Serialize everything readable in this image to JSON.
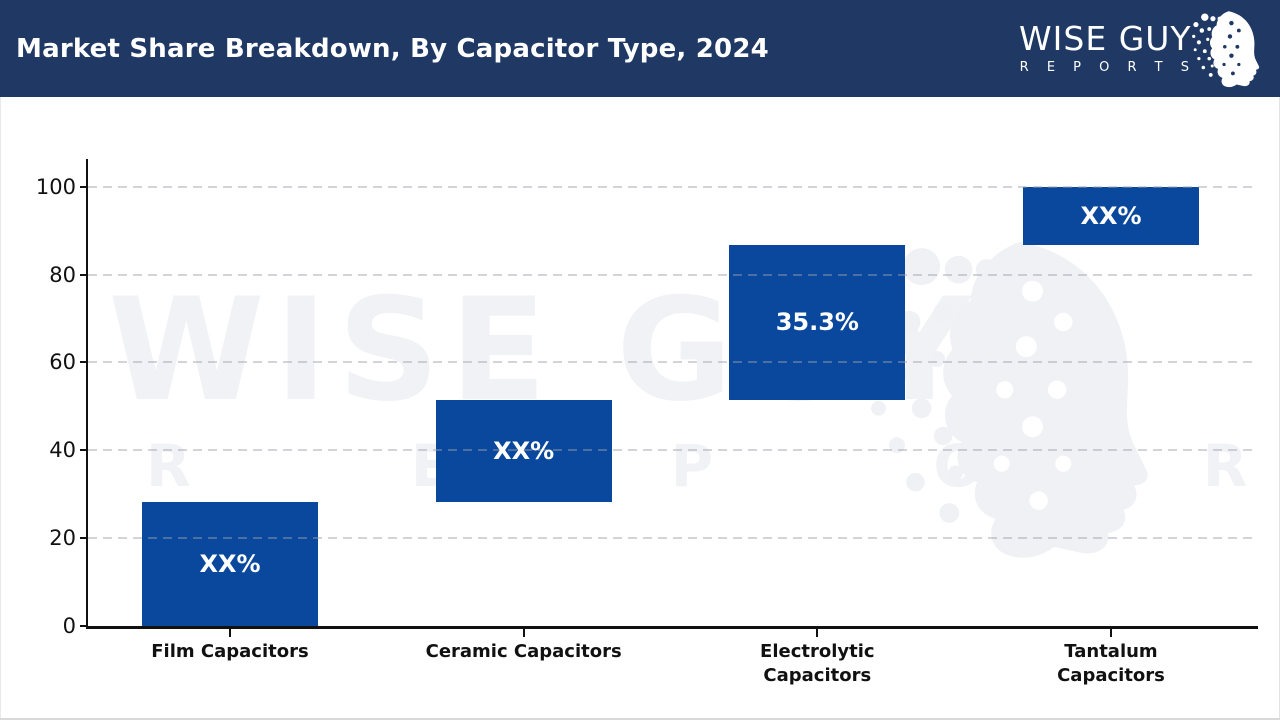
{
  "header": {
    "title": "Market Share Breakdown, By Capacitor Type, 2024",
    "logo": {
      "name_top": "WISE GUY",
      "name_bottom": "R E P O R T S"
    }
  },
  "watermark": {
    "text_top": "WISE GUY",
    "text_bottom": "R E P O R T S"
  },
  "colors": {
    "header_bg": "#1f3864",
    "bar": "#0a489d",
    "bar_label": "#ffffff",
    "grid": "#d9d9d9",
    "axis": "#111111",
    "watermark": "#f1f2f6"
  },
  "chart_data": {
    "type": "bar",
    "variant": "stacked-waterfall",
    "title": "Market Share Breakdown, By Capacitor Type, 2024",
    "categories": [
      "Film Capacitors",
      "Ceramic Capacitors",
      "Electrolytic Capacitors",
      "Tantalum Capacitors"
    ],
    "categories_lines": [
      [
        "Film Capacitors"
      ],
      [
        "Ceramic Capacitors"
      ],
      [
        "Electrolytic",
        "Capacitors"
      ],
      [
        "Tantalum",
        "Capacitors"
      ]
    ],
    "series": [
      {
        "name": "Market share (%)",
        "values": [
          28.2,
          23.3,
          35.3,
          13.2
        ]
      }
    ],
    "segments": [
      {
        "category": "Film Capacitors",
        "start": 0,
        "end": 28.2,
        "label": "XX%"
      },
      {
        "category": "Ceramic Capacitors",
        "start": 28.2,
        "end": 51.5,
        "label": "XX%"
      },
      {
        "category": "Electrolytic Capacitors",
        "start": 51.5,
        "end": 86.8,
        "label": "35.3%"
      },
      {
        "category": "Tantalum Capacitors",
        "start": 86.8,
        "end": 100,
        "label": "XX%"
      }
    ],
    "ylim": [
      0,
      100
    ],
    "yticks": [
      0,
      20,
      40,
      60,
      80,
      100
    ],
    "grid": "horizontal-dashed",
    "legend": "none",
    "xlabel": "",
    "ylabel": ""
  }
}
